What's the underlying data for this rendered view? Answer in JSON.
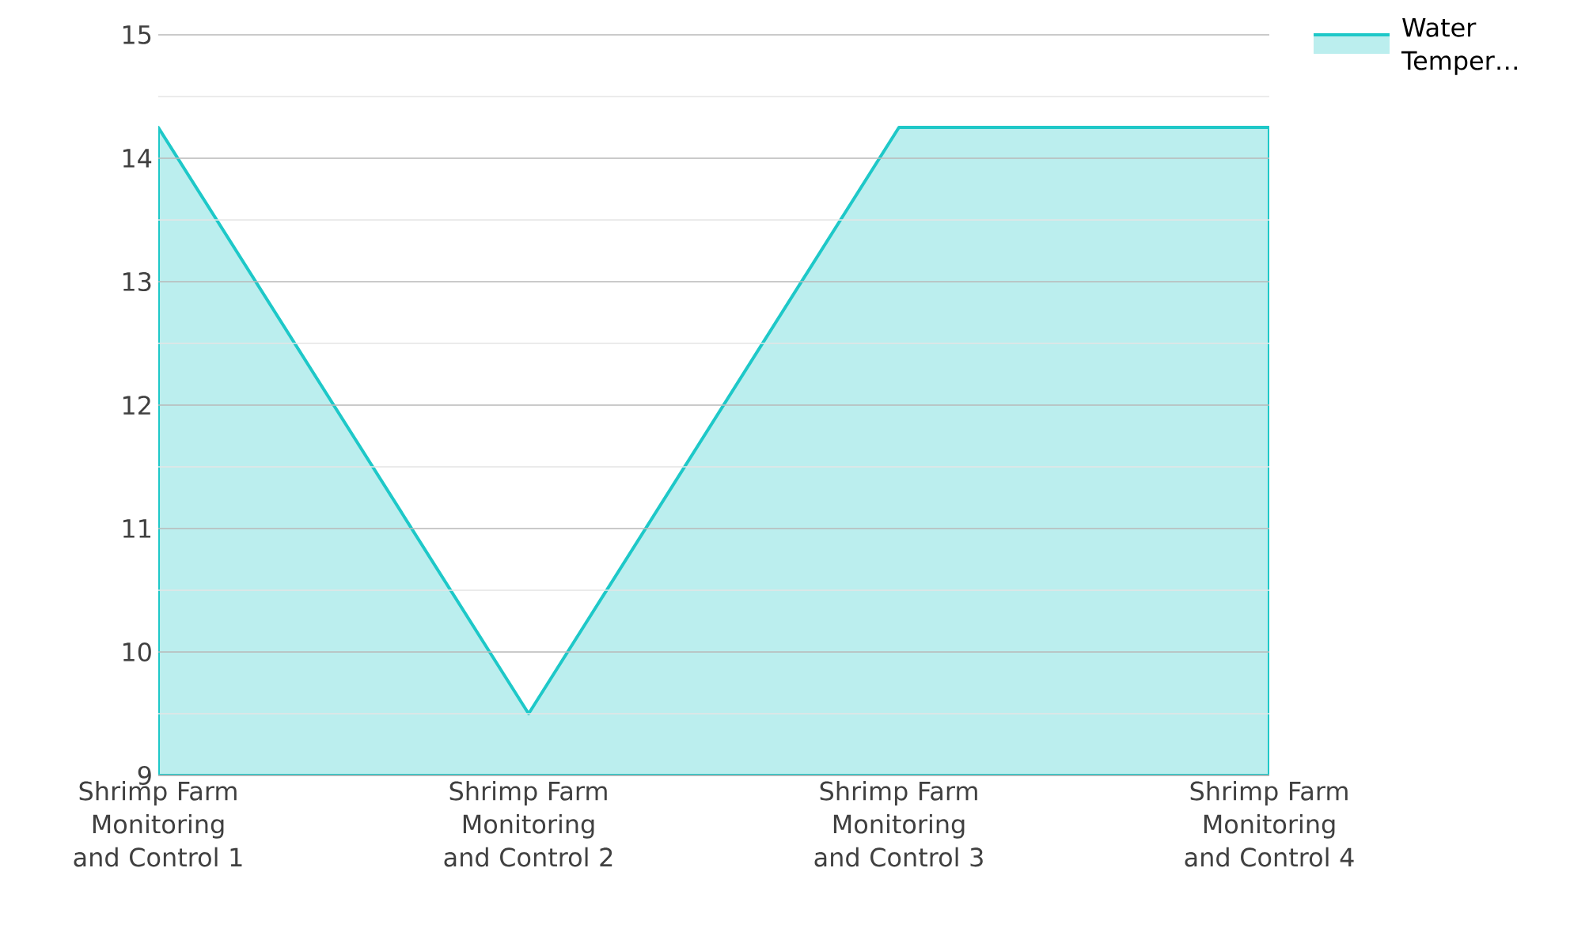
{
  "chart_data": {
    "type": "area",
    "categories": [
      "Shrimp Farm Monitoring and Control 1",
      "Shrimp Farm Monitoring and Control 2",
      "Shrimp Farm Monitoring and Control 3",
      "Shrimp Farm Monitoring and Control 4"
    ],
    "series": [
      {
        "name": "Water Temper…",
        "color": "#1ec8c8",
        "values": [
          14.25,
          9.5,
          14.25,
          14.25
        ]
      }
    ],
    "ylim": [
      9,
      15
    ],
    "yticks": [
      9,
      10,
      11,
      12,
      13,
      14,
      15
    ],
    "grid": true,
    "legend": "top right"
  }
}
